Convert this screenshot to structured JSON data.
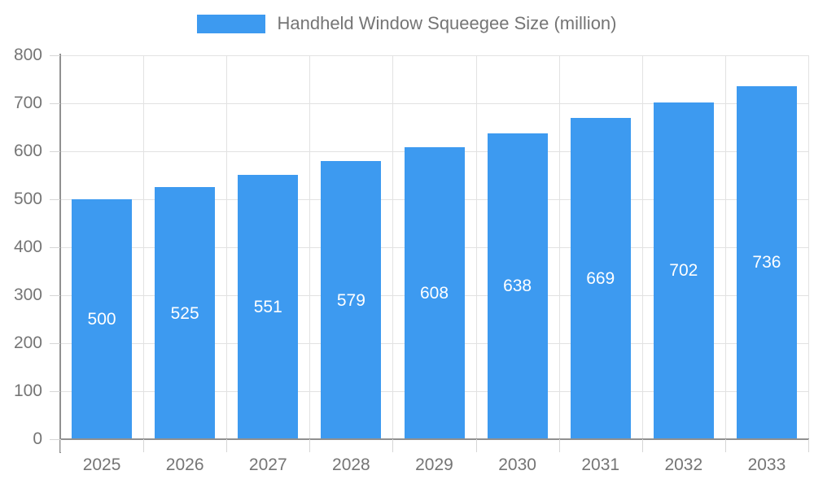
{
  "colors": {
    "bar": "#3D9AF0",
    "text": "#757575",
    "axis": "#909090",
    "grid": "#E2E2E2",
    "tick": "#D6D6D6",
    "label_on_bar": "#FFFFFF",
    "background": "#FFFFFF"
  },
  "legend": {
    "label": "Handheld Window Squeegee Size (million)"
  },
  "chart_data": {
    "type": "bar",
    "title": "Handheld Window Squeegee Size (million)",
    "xlabel": "",
    "ylabel": "",
    "categories": [
      "2025",
      "2026",
      "2027",
      "2028",
      "2029",
      "2030",
      "2031",
      "2032",
      "2033"
    ],
    "values": [
      500,
      525,
      551,
      579,
      608,
      638,
      669,
      702,
      736
    ],
    "series": [
      {
        "name": "Handheld Window Squeegee Size (million)",
        "values": [
          500,
          525,
          551,
          579,
          608,
          638,
          669,
          702,
          736
        ]
      }
    ],
    "value_labels": [
      "500",
      "525",
      "551",
      "579",
      "608",
      "638",
      "669",
      "702",
      "736"
    ],
    "ylim": [
      0,
      800
    ],
    "ytick_step": 100,
    "y_tick_labels": [
      "0",
      "100",
      "200",
      "300",
      "400",
      "500",
      "600",
      "700",
      "800"
    ],
    "grid": "on",
    "legend_position": "top",
    "bar_label_position": "inside-center"
  }
}
